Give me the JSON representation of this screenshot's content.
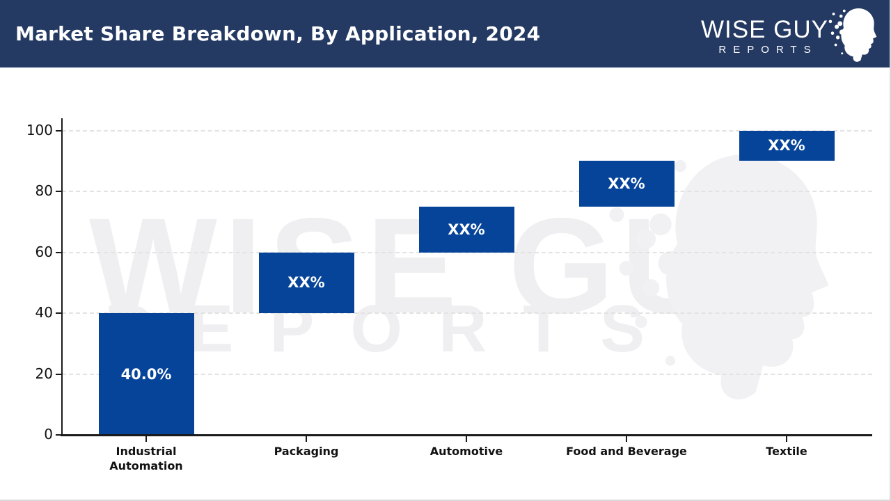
{
  "header": {
    "title": "Market Share Breakdown, By Application, 2024",
    "bg_color": "#243A63",
    "logo": {
      "line1": "WISE GUY",
      "line2": "REPORTS"
    }
  },
  "watermark": {
    "line1": "WISE GUY",
    "line2": "REPORTS"
  },
  "chart_data": {
    "type": "bar",
    "subtype": "waterfall",
    "title": "Market Share Breakdown, By Application, 2024",
    "xlabel": "",
    "ylabel": "",
    "ylim": [
      0,
      104
    ],
    "yticks": [
      0,
      20,
      40,
      60,
      80,
      100
    ],
    "grid": "horizontal-dashed",
    "legend": "none",
    "bar_color": "#06449A",
    "bar_label_color": "#ffffff",
    "categories": [
      "Industrial Automation",
      "Packaging",
      "Automotive",
      "Food and Beverage",
      "Textile"
    ],
    "category_label_lines": [
      [
        "Industrial",
        "Automation"
      ],
      [
        "Packaging"
      ],
      [
        "Automotive"
      ],
      [
        "Food and Beverage"
      ],
      [
        "Textile"
      ]
    ],
    "segments": [
      {
        "category": "Industrial Automation",
        "start": 0,
        "end": 40,
        "value": 40.0,
        "label": "40.0%"
      },
      {
        "category": "Packaging",
        "start": 40,
        "end": 60,
        "value": 20,
        "label": "XX%"
      },
      {
        "category": "Automotive",
        "start": 60,
        "end": 75,
        "value": 15,
        "label": "XX%"
      },
      {
        "category": "Food and Beverage",
        "start": 75,
        "end": 90,
        "value": 15,
        "label": "XX%"
      },
      {
        "category": "Textile",
        "start": 90,
        "end": 100,
        "value": 10,
        "label": "XX%"
      }
    ]
  }
}
